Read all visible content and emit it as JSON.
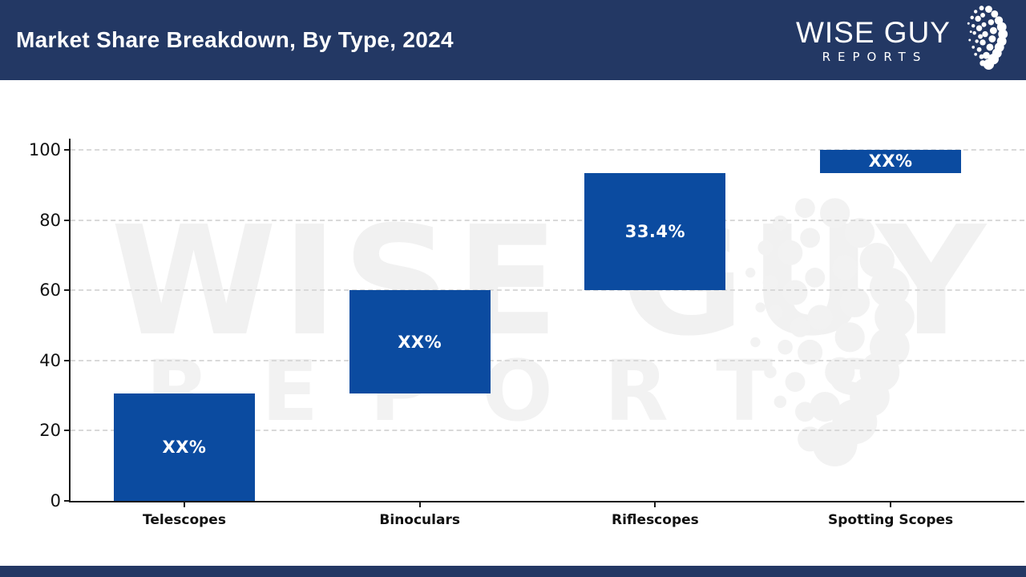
{
  "header": {
    "title": "Market Share Breakdown, By Type, 2024",
    "bg_color": "#233864",
    "brand": {
      "name": "WISE GUY",
      "sub": "REPORTS"
    }
  },
  "watermark": {
    "line1": "WISE GUY",
    "line2": "REPORTS"
  },
  "chart_data": {
    "type": "bar",
    "subtype": "waterfall",
    "title": "Market Share Breakdown, By Type, 2024",
    "categories": [
      "Telescopes",
      "Binoculars",
      "Riflescopes",
      "Spotting Scopes"
    ],
    "segments": [
      {
        "category": "Telescopes",
        "start": 0,
        "end": 30.6,
        "label": "XX%"
      },
      {
        "category": "Binoculars",
        "start": 30.6,
        "end": 60.0,
        "label": "XX%"
      },
      {
        "category": "Riflescopes",
        "start": 60.0,
        "end": 93.4,
        "label": "33.4%"
      },
      {
        "category": "Spotting Scopes",
        "start": 93.4,
        "end": 100.0,
        "label": "XX%"
      }
    ],
    "xlabel": "",
    "ylabel": "",
    "ylim": [
      0,
      103
    ],
    "yticks": [
      0,
      20,
      40,
      60,
      80,
      100
    ],
    "grid": "horizontal dashed",
    "legend": "none",
    "bar_color": "#0b4ba0",
    "bar_label_color": "#ffffff",
    "axis_color": "#1a1a1a",
    "gridline_color": "#d9d9d9"
  },
  "footer": {
    "bg_color": "#233864"
  }
}
